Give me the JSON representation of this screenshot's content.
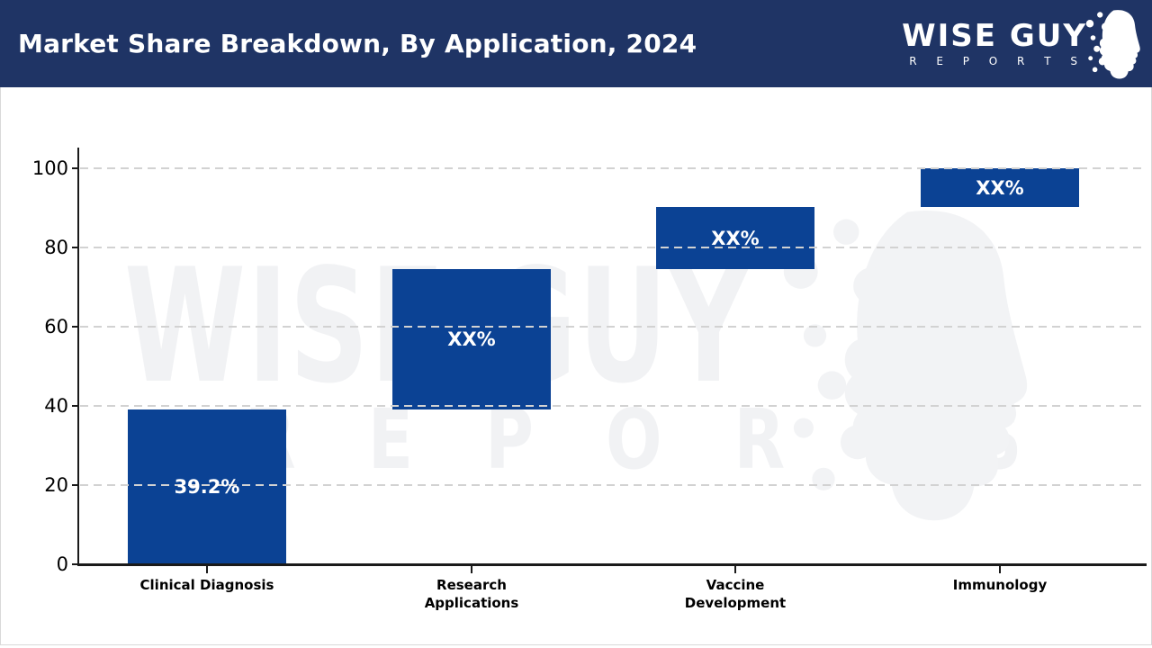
{
  "header": {
    "title": "Market Share Breakdown, By Application, 2024",
    "logo": {
      "line1": "WISE GUY",
      "line2": "R E P O R T S"
    }
  },
  "watermark": {
    "line1": "WISE GUY",
    "line2": "R E P O R T S"
  },
  "chart_data": {
    "type": "bar",
    "subtype": "waterfall",
    "title": "Market Share Breakdown, By Application, 2024",
    "xlabel": "",
    "ylabel": "",
    "categories": [
      "Clinical Diagnosis",
      "Research\nApplications",
      "Vaccine\nDevelopment",
      "Immunology"
    ],
    "segments": [
      {
        "label": "39.2%",
        "start": 0,
        "end": 39.2
      },
      {
        "label": "XX%",
        "start": 39.2,
        "end": 74.5
      },
      {
        "label": "XX%",
        "start": 74.5,
        "end": 90.2
      },
      {
        "label": "XX%",
        "start": 90.2,
        "end": 100
      }
    ],
    "bar_labels": [
      "39.2%",
      "XX%",
      "XX%",
      "XX%"
    ],
    "yticks": [
      0,
      20,
      40,
      60,
      80,
      100
    ],
    "ylim": [
      0,
      105
    ],
    "grid": "horizontal dashed, drawn over bars",
    "legend": "none",
    "bar_color": "#0b4294",
    "header_color": "#1f3465",
    "gridline_color": "#d2d2d2",
    "watermark_color": "#f1f2f4"
  }
}
